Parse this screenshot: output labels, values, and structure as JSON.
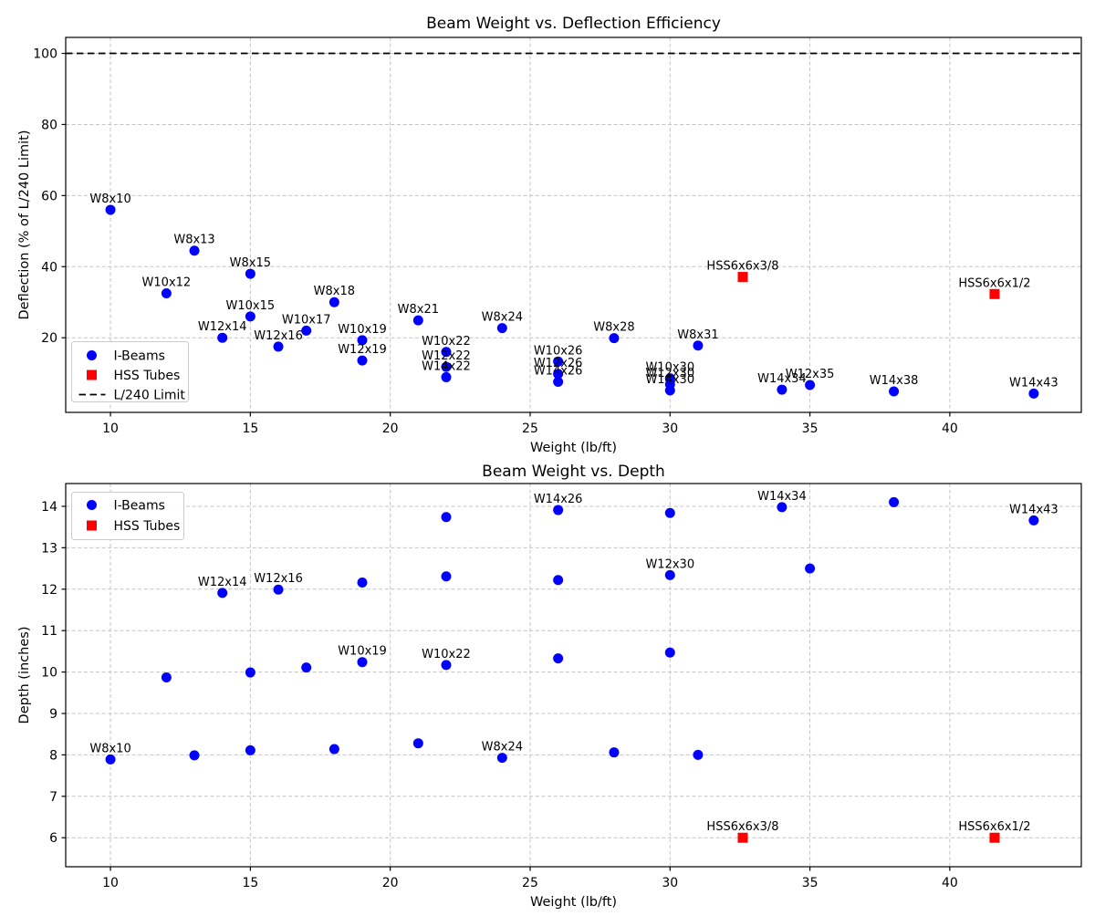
{
  "figure": {
    "background": "#ffffff",
    "colors": {
      "ibeam": "#0000ff",
      "hss": "#ff0000",
      "limit_line": "#000000",
      "grid": "#c4c4c4"
    }
  },
  "chart_data": [
    {
      "type": "scatter",
      "title": "Beam Weight vs. Deflection Efficiency",
      "xlabel": "Weight (lb/ft)",
      "ylabel": "Deflection (% of L/240 Limit)",
      "xlim": [
        8.4,
        44.7
      ],
      "ylim": [
        -1.0,
        104.5
      ],
      "xticks": [
        10,
        15,
        20,
        25,
        30,
        35,
        40
      ],
      "yticks": [
        20,
        40,
        60,
        80,
        100
      ],
      "grid": true,
      "limit_line": {
        "y": 100,
        "label": "L/240 Limit"
      },
      "legend": {
        "position": "lower-left",
        "entries": [
          {
            "label": "I-Beams",
            "marker": "circle",
            "color": "#0000ff"
          },
          {
            "label": "HSS Tubes",
            "marker": "square",
            "color": "#ff0000"
          },
          {
            "label": "L/240 Limit",
            "marker": "dashed-line",
            "color": "#000000"
          }
        ]
      },
      "series": [
        {
          "name": "I-Beams",
          "marker": "circle",
          "color": "#0000ff",
          "points": [
            {
              "label": "W8x10",
              "x": 10,
              "y": 56.0,
              "show_label": true
            },
            {
              "label": "W10x12",
              "x": 12,
              "y": 32.5,
              "show_label": true
            },
            {
              "label": "W8x13",
              "x": 13,
              "y": 44.5,
              "show_label": true
            },
            {
              "label": "W12x14",
              "x": 14,
              "y": 20.0,
              "show_label": true
            },
            {
              "label": "W8x15",
              "x": 15,
              "y": 38.0,
              "show_label": true
            },
            {
              "label": "W10x15",
              "x": 15,
              "y": 26.0,
              "show_label": true
            },
            {
              "label": "W12x16",
              "x": 16,
              "y": 17.5,
              "show_label": true
            },
            {
              "label": "W10x17",
              "x": 17,
              "y": 22.0,
              "show_label": true
            },
            {
              "label": "W8x18",
              "x": 18,
              "y": 30.0,
              "show_label": true
            },
            {
              "label": "W10x19",
              "x": 19,
              "y": 19.3,
              "show_label": true
            },
            {
              "label": "W12x19",
              "x": 19,
              "y": 13.6,
              "show_label": true
            },
            {
              "label": "W8x21",
              "x": 21,
              "y": 24.9,
              "show_label": true
            },
            {
              "label": "W10x22",
              "x": 22,
              "y": 16.0,
              "show_label": true
            },
            {
              "label": "W12x22",
              "x": 22,
              "y": 11.8,
              "show_label": true
            },
            {
              "label": "W14x22",
              "x": 22,
              "y": 8.9,
              "show_label": true
            },
            {
              "label": "W8x24",
              "x": 24,
              "y": 22.7,
              "show_label": true
            },
            {
              "label": "W10x26",
              "x": 26,
              "y": 13.3,
              "show_label": true
            },
            {
              "label": "W12x26",
              "x": 26,
              "y": 9.8,
              "show_label": true
            },
            {
              "label": "W14x26",
              "x": 26,
              "y": 7.6,
              "show_label": true
            },
            {
              "label": "W8x28",
              "x": 28,
              "y": 19.9,
              "show_label": true
            },
            {
              "label": "W10x30",
              "x": 30,
              "y": 8.6,
              "show_label": true
            },
            {
              "label": "W12x30",
              "x": 30,
              "y": 6.9,
              "show_label": true
            },
            {
              "label": "W14x30",
              "x": 30,
              "y": 5.2,
              "show_label": true
            },
            {
              "label": "W8x31",
              "x": 31,
              "y": 17.8,
              "show_label": true
            },
            {
              "label": "W14x34",
              "x": 34,
              "y": 5.4,
              "show_label": true
            },
            {
              "label": "W12x35",
              "x": 35,
              "y": 6.7,
              "show_label": true
            },
            {
              "label": "W14x38",
              "x": 38,
              "y": 4.9,
              "show_label": true
            },
            {
              "label": "W14x43",
              "x": 43,
              "y": 4.3,
              "show_label": true
            }
          ]
        },
        {
          "name": "HSS Tubes",
          "marker": "square",
          "color": "#ff0000",
          "points": [
            {
              "label": "HSS6x6x3/8",
              "x": 32.6,
              "y": 37.1,
              "show_label": true
            },
            {
              "label": "HSS6x6x1/2",
              "x": 41.6,
              "y": 32.3,
              "show_label": true
            }
          ]
        }
      ]
    },
    {
      "type": "scatter",
      "title": "Beam Weight vs. Depth",
      "xlabel": "Weight (lb/ft)",
      "ylabel": "Depth (inches)",
      "xlim": [
        8.4,
        44.7
      ],
      "ylim": [
        5.3,
        14.55
      ],
      "xticks": [
        10,
        15,
        20,
        25,
        30,
        35,
        40
      ],
      "yticks": [
        6,
        7,
        8,
        9,
        10,
        11,
        12,
        13,
        14
      ],
      "grid": true,
      "legend": {
        "position": "upper-left",
        "entries": [
          {
            "label": "I-Beams",
            "marker": "circle",
            "color": "#0000ff"
          },
          {
            "label": "HSS Tubes",
            "marker": "square",
            "color": "#ff0000"
          }
        ]
      },
      "series": [
        {
          "name": "I-Beams",
          "marker": "circle",
          "color": "#0000ff",
          "points": [
            {
              "label": "W8x10",
              "x": 10,
              "y": 7.89,
              "show_label": true
            },
            {
              "label": "W10x12",
              "x": 12,
              "y": 9.87,
              "show_label": false
            },
            {
              "label": "W8x13",
              "x": 13,
              "y": 7.99,
              "show_label": false
            },
            {
              "label": "W12x14",
              "x": 14,
              "y": 11.91,
              "show_label": true
            },
            {
              "label": "W8x15",
              "x": 15,
              "y": 8.11,
              "show_label": false
            },
            {
              "label": "W10x15",
              "x": 15,
              "y": 9.99,
              "show_label": false
            },
            {
              "label": "W12x16",
              "x": 16,
              "y": 11.99,
              "show_label": true
            },
            {
              "label": "W10x17",
              "x": 17,
              "y": 10.11,
              "show_label": false
            },
            {
              "label": "W8x18",
              "x": 18,
              "y": 8.14,
              "show_label": false
            },
            {
              "label": "W10x19",
              "x": 19,
              "y": 10.24,
              "show_label": true
            },
            {
              "label": "W12x19",
              "x": 19,
              "y": 12.16,
              "show_label": false
            },
            {
              "label": "W8x21",
              "x": 21,
              "y": 8.28,
              "show_label": false
            },
            {
              "label": "W10x22",
              "x": 22,
              "y": 10.17,
              "show_label": true
            },
            {
              "label": "W12x22",
              "x": 22,
              "y": 12.31,
              "show_label": false
            },
            {
              "label": "W14x22",
              "x": 22,
              "y": 13.74,
              "show_label": false
            },
            {
              "label": "W8x24",
              "x": 24,
              "y": 7.93,
              "show_label": true
            },
            {
              "label": "W10x26",
              "x": 26,
              "y": 10.33,
              "show_label": false
            },
            {
              "label": "W12x26",
              "x": 26,
              "y": 12.22,
              "show_label": false
            },
            {
              "label": "W14x26",
              "x": 26,
              "y": 13.91,
              "show_label": true
            },
            {
              "label": "W8x28",
              "x": 28,
              "y": 8.06,
              "show_label": false
            },
            {
              "label": "W10x30",
              "x": 30,
              "y": 10.47,
              "show_label": false
            },
            {
              "label": "W12x30",
              "x": 30,
              "y": 12.34,
              "show_label": true
            },
            {
              "label": "W14x30",
              "x": 30,
              "y": 13.84,
              "show_label": false
            },
            {
              "label": "W8x31",
              "x": 31,
              "y": 8.0,
              "show_label": false
            },
            {
              "label": "W14x34",
              "x": 34,
              "y": 13.98,
              "show_label": true
            },
            {
              "label": "W12x35",
              "x": 35,
              "y": 12.5,
              "show_label": false
            },
            {
              "label": "W14x38",
              "x": 38,
              "y": 14.1,
              "show_label": false
            },
            {
              "label": "W14x43",
              "x": 43,
              "y": 13.66,
              "show_label": true
            }
          ]
        },
        {
          "name": "HSS Tubes",
          "marker": "square",
          "color": "#ff0000",
          "points": [
            {
              "label": "HSS6x6x3/8",
              "x": 32.6,
              "y": 6.0,
              "show_label": true
            },
            {
              "label": "HSS6x6x1/2",
              "x": 41.6,
              "y": 6.0,
              "show_label": true
            }
          ]
        }
      ]
    }
  ]
}
